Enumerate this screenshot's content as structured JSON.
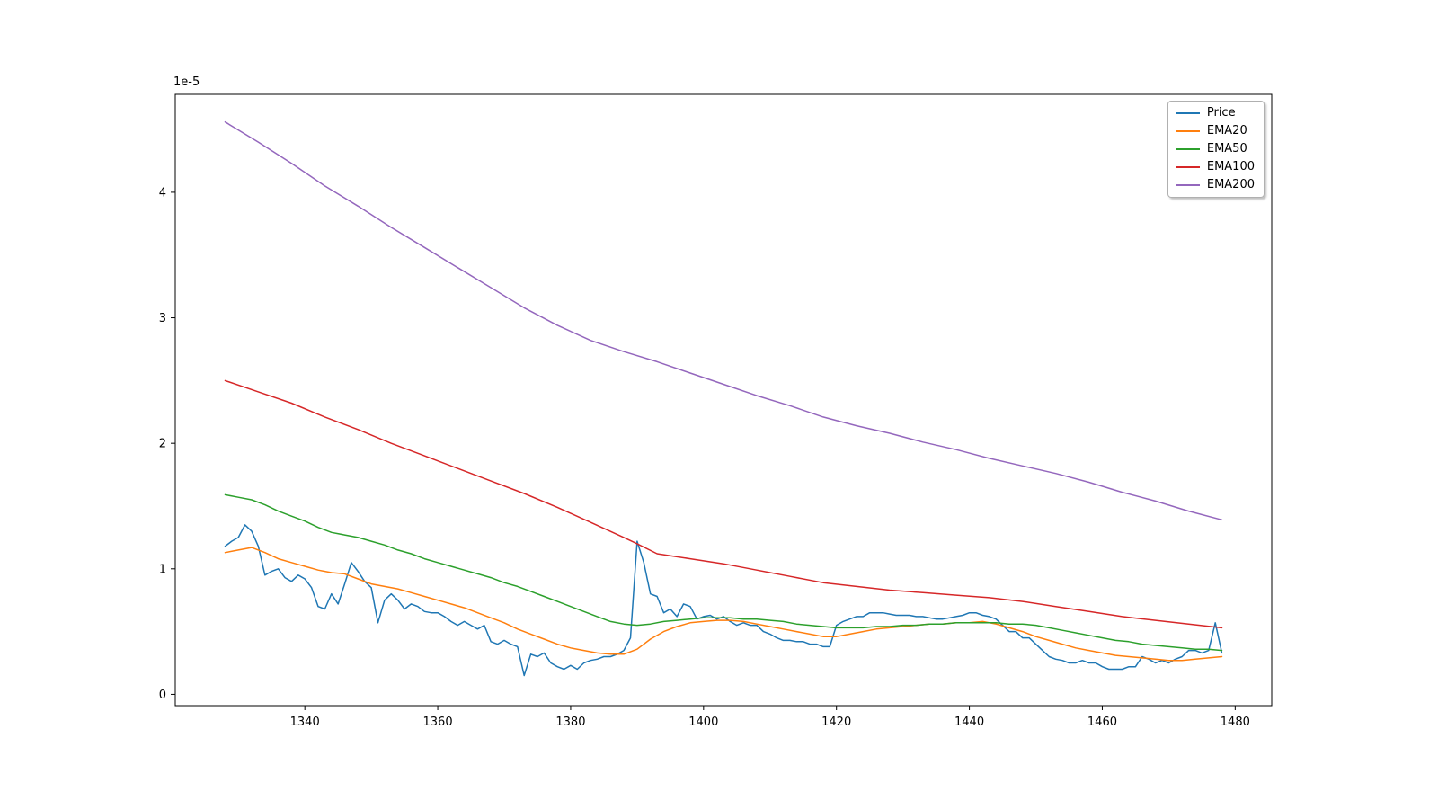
{
  "chart_data": {
    "type": "line",
    "title": "",
    "xlabel": "",
    "ylabel": "",
    "offset_text": "1e-5",
    "y_units": "1e-5",
    "xlim": [
      1320.5,
      1485.5
    ],
    "ylim": [
      -0.09,
      4.78
    ],
    "xticks": [
      1340,
      1360,
      1380,
      1400,
      1420,
      1440,
      1460,
      1480
    ],
    "yticks": [
      0,
      1,
      2,
      3,
      4
    ],
    "grid": false,
    "legend_position": "upper right",
    "legend_entries": [
      "Price",
      "EMA20",
      "EMA50",
      "EMA100",
      "EMA200"
    ],
    "series": [
      {
        "name": "Price",
        "color": "#1f77b4",
        "x_start": 1328,
        "x_step": 1,
        "y": [
          1.18,
          1.22,
          1.25,
          1.35,
          1.3,
          1.18,
          0.95,
          0.98,
          1.0,
          0.93,
          0.9,
          0.95,
          0.92,
          0.85,
          0.7,
          0.68,
          0.8,
          0.72,
          0.88,
          1.05,
          0.98,
          0.9,
          0.85,
          0.57,
          0.75,
          0.8,
          0.75,
          0.68,
          0.72,
          0.7,
          0.66,
          0.65,
          0.65,
          0.62,
          0.58,
          0.55,
          0.58,
          0.55,
          0.52,
          0.55,
          0.42,
          0.4,
          0.43,
          0.4,
          0.38,
          0.15,
          0.32,
          0.3,
          0.33,
          0.25,
          0.22,
          0.2,
          0.23,
          0.2,
          0.25,
          0.27,
          0.28,
          0.3,
          0.3,
          0.32,
          0.35,
          0.45,
          1.22,
          1.05,
          0.8,
          0.78,
          0.65,
          0.68,
          0.62,
          0.72,
          0.7,
          0.6,
          0.62,
          0.63,
          0.6,
          0.62,
          0.58,
          0.55,
          0.57,
          0.55,
          0.55,
          0.5,
          0.48,
          0.45,
          0.43,
          0.43,
          0.42,
          0.42,
          0.4,
          0.4,
          0.38,
          0.38,
          0.55,
          0.58,
          0.6,
          0.62,
          0.62,
          0.65,
          0.65,
          0.65,
          0.64,
          0.63,
          0.63,
          0.63,
          0.62,
          0.62,
          0.61,
          0.6,
          0.6,
          0.61,
          0.62,
          0.63,
          0.65,
          0.65,
          0.63,
          0.62,
          0.6,
          0.55,
          0.5,
          0.5,
          0.45,
          0.45,
          0.4,
          0.35,
          0.3,
          0.28,
          0.27,
          0.25,
          0.25,
          0.27,
          0.25,
          0.25,
          0.22,
          0.2,
          0.2,
          0.2,
          0.22,
          0.22,
          0.3,
          0.28,
          0.25,
          0.27,
          0.25,
          0.28,
          0.3,
          0.35,
          0.35,
          0.33,
          0.35,
          0.57,
          0.33
        ]
      },
      {
        "name": "EMA20",
        "color": "#ff7f0e",
        "x_start": 1328,
        "x_step": 2,
        "y": [
          1.13,
          1.15,
          1.17,
          1.13,
          1.08,
          1.05,
          1.02,
          0.99,
          0.97,
          0.96,
          0.92,
          0.88,
          0.86,
          0.84,
          0.81,
          0.78,
          0.75,
          0.72,
          0.69,
          0.65,
          0.61,
          0.57,
          0.52,
          0.48,
          0.44,
          0.4,
          0.37,
          0.35,
          0.33,
          0.32,
          0.32,
          0.36,
          0.44,
          0.5,
          0.54,
          0.57,
          0.58,
          0.59,
          0.59,
          0.58,
          0.56,
          0.54,
          0.52,
          0.5,
          0.48,
          0.46,
          0.46,
          0.48,
          0.5,
          0.52,
          0.53,
          0.54,
          0.55,
          0.56,
          0.56,
          0.57,
          0.57,
          0.58,
          0.56,
          0.53,
          0.5,
          0.46,
          0.43,
          0.4,
          0.37,
          0.35,
          0.33,
          0.31,
          0.3,
          0.29,
          0.28,
          0.27,
          0.27,
          0.28,
          0.29,
          0.3
        ]
      },
      {
        "name": "EMA50",
        "color": "#2ca02c",
        "x_start": 1328,
        "x_step": 2,
        "y": [
          1.59,
          1.57,
          1.55,
          1.51,
          1.46,
          1.42,
          1.38,
          1.33,
          1.29,
          1.27,
          1.25,
          1.22,
          1.19,
          1.15,
          1.12,
          1.08,
          1.05,
          1.02,
          0.99,
          0.96,
          0.93,
          0.89,
          0.86,
          0.82,
          0.78,
          0.74,
          0.7,
          0.66,
          0.62,
          0.58,
          0.56,
          0.55,
          0.56,
          0.58,
          0.59,
          0.6,
          0.61,
          0.61,
          0.61,
          0.6,
          0.6,
          0.59,
          0.58,
          0.56,
          0.55,
          0.54,
          0.53,
          0.53,
          0.53,
          0.54,
          0.54,
          0.55,
          0.55,
          0.56,
          0.56,
          0.57,
          0.57,
          0.57,
          0.57,
          0.56,
          0.56,
          0.55,
          0.53,
          0.51,
          0.49,
          0.47,
          0.45,
          0.43,
          0.42,
          0.4,
          0.39,
          0.38,
          0.37,
          0.36,
          0.36,
          0.35
        ]
      },
      {
        "name": "EMA100",
        "color": "#d62728",
        "x": [
          1328,
          1333,
          1338,
          1343,
          1348,
          1353,
          1358,
          1363,
          1368,
          1373,
          1378,
          1383,
          1388,
          1390,
          1393,
          1398,
          1403,
          1408,
          1413,
          1418,
          1423,
          1428,
          1433,
          1438,
          1443,
          1448,
          1453,
          1458,
          1463,
          1468,
          1473,
          1478
        ],
        "y": [
          2.5,
          2.41,
          2.32,
          2.21,
          2.11,
          2.0,
          1.9,
          1.8,
          1.7,
          1.6,
          1.49,
          1.37,
          1.25,
          1.2,
          1.12,
          1.08,
          1.04,
          0.99,
          0.94,
          0.89,
          0.86,
          0.83,
          0.81,
          0.79,
          0.77,
          0.74,
          0.7,
          0.66,
          0.62,
          0.59,
          0.56,
          0.53
        ]
      },
      {
        "name": "EMA200",
        "color": "#9467bd",
        "x": [
          1328,
          1333,
          1338,
          1343,
          1348,
          1353,
          1358,
          1363,
          1368,
          1373,
          1378,
          1383,
          1388,
          1393,
          1398,
          1403,
          1408,
          1413,
          1418,
          1423,
          1428,
          1433,
          1438,
          1443,
          1448,
          1453,
          1458,
          1463,
          1468,
          1473,
          1478
        ],
        "y": [
          4.56,
          4.4,
          4.23,
          4.05,
          3.89,
          3.72,
          3.56,
          3.4,
          3.24,
          3.08,
          2.94,
          2.82,
          2.73,
          2.65,
          2.56,
          2.47,
          2.38,
          2.3,
          2.21,
          2.14,
          2.08,
          2.01,
          1.95,
          1.88,
          1.82,
          1.76,
          1.69,
          1.61,
          1.54,
          1.46,
          1.39
        ]
      }
    ]
  }
}
